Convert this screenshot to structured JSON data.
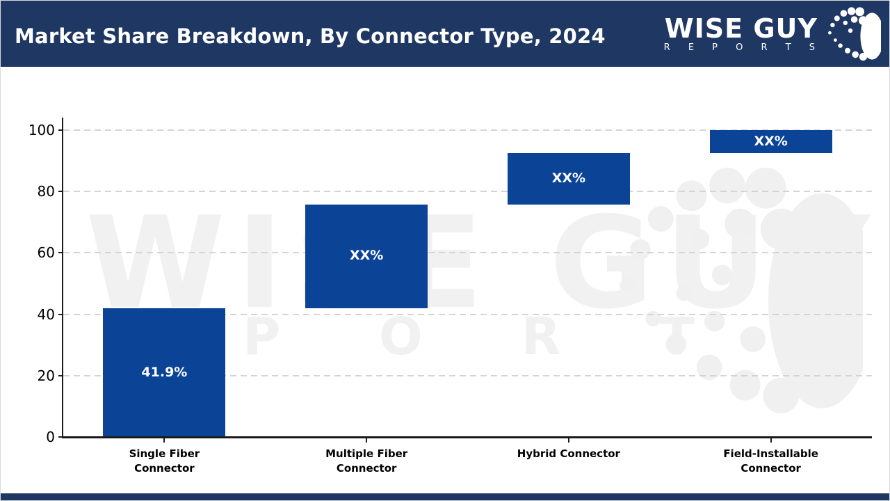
{
  "header": {
    "title": "Market Share Breakdown, By Connector Type, 2024",
    "logo": {
      "line1": "WISE GUY",
      "line2": "R E P O R T S"
    }
  },
  "watermark": {
    "line1": "WISE GUY",
    "line2": "P O R T S"
  },
  "colors": {
    "header_bg": "#1F3863",
    "footer_bg": "#1F3863",
    "bar": "#0B4397",
    "bar_label": "#FFFFFF",
    "grid": "#D4D4D4",
    "axis": "#1A1A1A",
    "watermark": "#F1F1F1",
    "page_border": "#D9D9D9"
  },
  "chart_data": {
    "type": "bar",
    "variant": "waterfall",
    "title": "Market Share Breakdown, By Connector Type, 2024",
    "xlabel": "",
    "ylabel": "",
    "ylim": [
      0,
      100
    ],
    "yticks": [
      0,
      20,
      40,
      60,
      80,
      100
    ],
    "grid": "horizontal-dashed",
    "legend": false,
    "categories": [
      "Single Fiber Connector",
      "Multiple Fiber Connector",
      "Hybrid Connector",
      "Field-Installable Connector"
    ],
    "segments": [
      {
        "category": "Single Fiber Connector",
        "category_lines": [
          "Single Fiber",
          "Connector"
        ],
        "start": 0,
        "end": 41.9,
        "label": "41.9%"
      },
      {
        "category": "Multiple Fiber Connector",
        "category_lines": [
          "Multiple Fiber",
          "Connector"
        ],
        "start": 41.9,
        "end": 75.8,
        "label": "XX%"
      },
      {
        "category": "Hybrid Connector",
        "category_lines": [
          "Hybrid Connector"
        ],
        "start": 75.8,
        "end": 92.5,
        "label": "XX%"
      },
      {
        "category": "Field-Installable Connector",
        "category_lines": [
          "Field-Installable",
          "Connector"
        ],
        "start": 92.5,
        "end": 100,
        "label": "XX%"
      }
    ]
  }
}
